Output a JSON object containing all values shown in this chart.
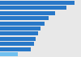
{
  "values": [
    92,
    82,
    68,
    60,
    55,
    50,
    47,
    44,
    42,
    38,
    22
  ],
  "colors": [
    "#2878c8",
    "#2878c8",
    "#2878c8",
    "#2878c8",
    "#2878c8",
    "#2878c8",
    "#2878c8",
    "#2878c8",
    "#2878c8",
    "#2878c8",
    "#70c0f0"
  ],
  "background_color": "#e8e8e8",
  "plot_bg_color": "#e8e8e8",
  "xlim": [
    0,
    100
  ],
  "bar_height": 0.78
}
